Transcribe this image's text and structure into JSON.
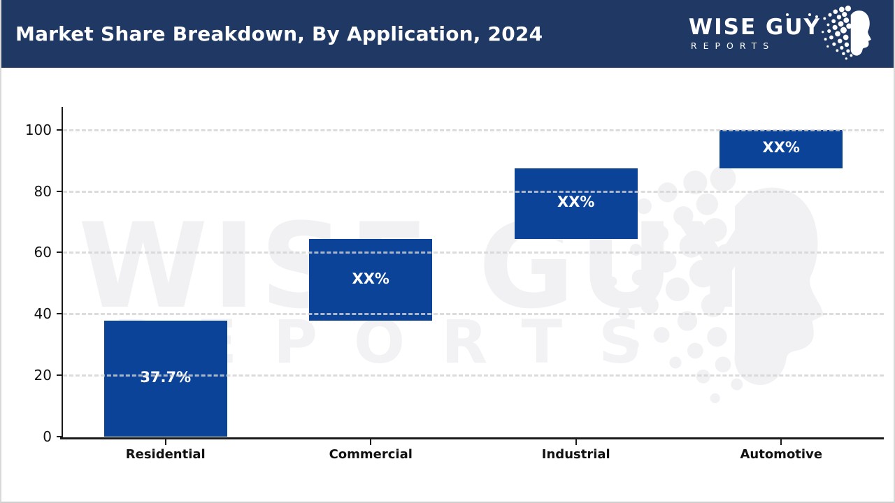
{
  "header": {
    "title": "Market Share Breakdown, By Application, 2024",
    "logo": {
      "line1": "WISE GUY",
      "line2": "REPORTS"
    }
  },
  "watermark": {
    "line1": "WISE GUY",
    "line2": "REPORTS"
  },
  "colors": {
    "header_bg": "#1f3864",
    "bar": "#0b4398",
    "bar_label": "#ffffff",
    "axis": "#1a1a1a",
    "grid": "#d4d4d4",
    "watermark": "#f1f1f4"
  },
  "chart_data": {
    "type": "bar",
    "subtype": "waterfall",
    "title": "Market Share Breakdown, By Application, 2024",
    "categories": [
      "Residential",
      "Commercial",
      "Industrial",
      "Automotive"
    ],
    "segments": [
      {
        "category": "Residential",
        "start": 0,
        "end": 37.7,
        "label": "37.7%"
      },
      {
        "category": "Commercial",
        "start": 37.7,
        "end": 64.5,
        "label": "XX%"
      },
      {
        "category": "Industrial",
        "start": 64.5,
        "end": 87.5,
        "label": "XX%"
      },
      {
        "category": "Automotive",
        "start": 87.5,
        "end": 100,
        "label": "XX%"
      }
    ],
    "unit": "%",
    "yticks": [
      0,
      20,
      40,
      60,
      80,
      100
    ],
    "ylim": [
      0,
      107
    ],
    "grid": "dashed-horizontal",
    "legend": "none"
  }
}
